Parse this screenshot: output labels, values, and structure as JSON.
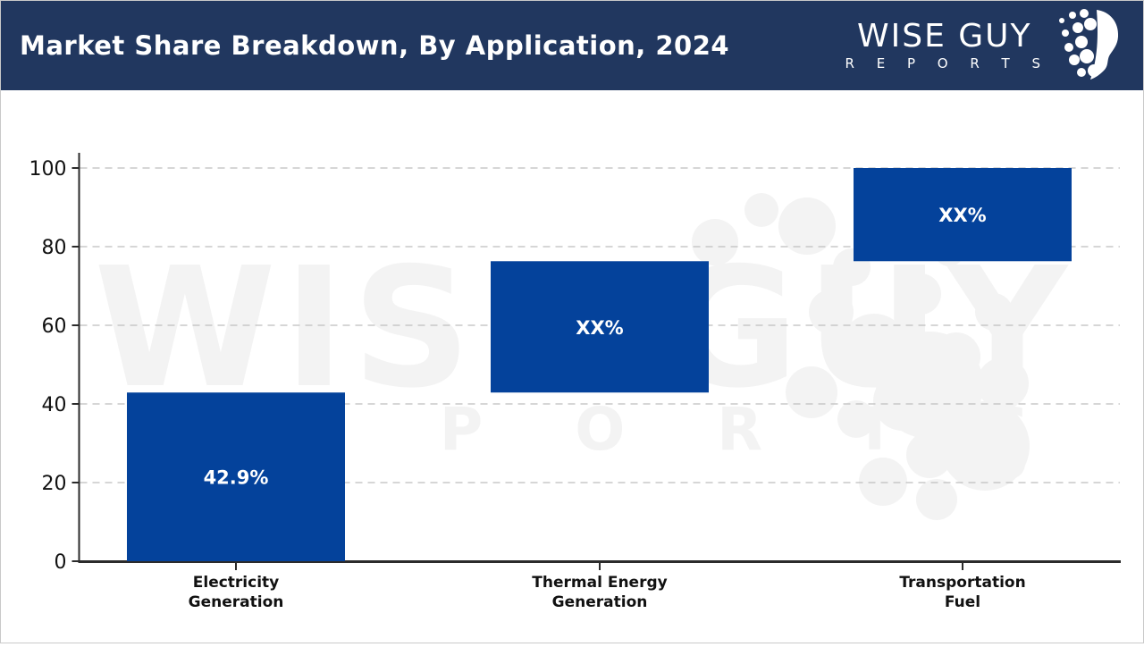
{
  "header": {
    "title": "Market Share Breakdown, By Application, 2024",
    "logo": {
      "line1": "WISE GUY",
      "line2": "R E P O R T S"
    }
  },
  "colors": {
    "header_bg": "#21375f",
    "bar": "#04429b",
    "bar_label": "#ffffff",
    "axis": "#2b2b2b",
    "grid": "#c8c8c8",
    "tick_label": "#111111",
    "category_label": "#111111",
    "watermark": "#f3f3f3",
    "page_border": "#c9c9c9"
  },
  "chart_data": {
    "type": "bar",
    "subtype": "stacked-waterfall",
    "title": "Market Share Breakdown, By Application, 2024",
    "xlabel": "",
    "ylabel": "",
    "ylim": [
      0,
      100
    ],
    "yticks": [
      0,
      20,
      40,
      60,
      80,
      100
    ],
    "grid": "dashed-horizontal",
    "categories": [
      [
        "Electricity",
        "Generation"
      ],
      [
        "Thermal Energy",
        "Generation"
      ],
      [
        "Transportation",
        "Fuel"
      ]
    ],
    "segments": [
      {
        "category": "Electricity Generation",
        "from": 0,
        "to": 42.9,
        "label": "42.9%"
      },
      {
        "category": "Thermal Energy Generation",
        "from": 42.9,
        "to": 76.3,
        "label": "XX%"
      },
      {
        "category": "Transportation Fuel",
        "from": 76.3,
        "to": 100,
        "label": "XX%"
      }
    ],
    "watermark": {
      "line1": "WISE GUY",
      "line2": "R E P O R T S"
    }
  }
}
